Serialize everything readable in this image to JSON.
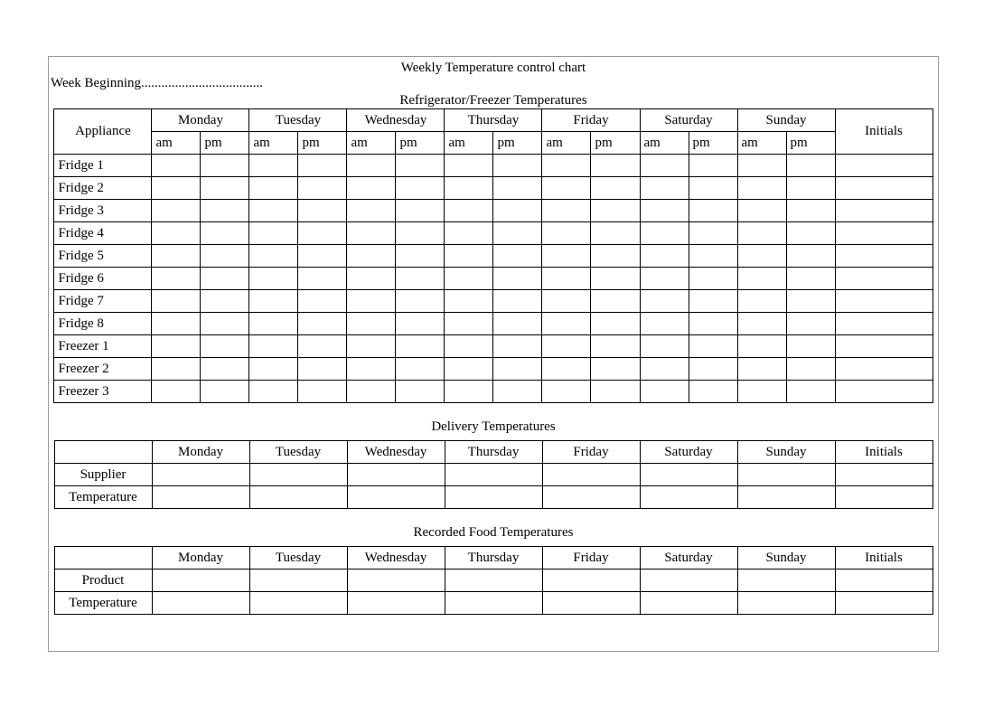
{
  "title": "Weekly Temperature control chart",
  "week_label": "Week Beginning....................................",
  "section1_title": "Refrigerator/Freezer Temperatures",
  "section2_title": "Delivery Temperatures",
  "section3_title": "Recorded Food Temperatures",
  "days": [
    "Monday",
    "Tuesday",
    "Wednesday",
    "Thursday",
    "Friday",
    "Saturday",
    "Sunday"
  ],
  "am": "am",
  "pm": "pm",
  "appliance_header": "Appliance",
  "initials_header": "Initials",
  "appliances": [
    "Fridge 1",
    "Fridge 2",
    "Fridge 3",
    "Fridge 4",
    "Fridge 5",
    "Fridge 6",
    "Fridge 7",
    "Fridge 8",
    "Freezer 1",
    "Freezer 2",
    "Freezer 3"
  ],
  "supplier_label": "Supplier",
  "temperature_label": "Temperature",
  "product_label": "Product",
  "appliance_values": {
    "Fridge 1": [
      "",
      "",
      "",
      "",
      "",
      "",
      "",
      "",
      "",
      "",
      "",
      "",
      "",
      ""
    ],
    "Fridge 2": [
      "",
      "",
      "",
      "",
      "",
      "",
      "",
      "",
      "",
      "",
      "",
      "",
      "",
      ""
    ],
    "Fridge 3": [
      "",
      "",
      "",
      "",
      "",
      "",
      "",
      "",
      "",
      "",
      "",
      "",
      "",
      ""
    ],
    "Fridge 4": [
      "",
      "",
      "",
      "",
      "",
      "",
      "",
      "",
      "",
      "",
      "",
      "",
      "",
      ""
    ],
    "Fridge 5": [
      "",
      "",
      "",
      "",
      "",
      "",
      "",
      "",
      "",
      "",
      "",
      "",
      "",
      ""
    ],
    "Fridge 6": [
      "",
      "",
      "",
      "",
      "",
      "",
      "",
      "",
      "",
      "",
      "",
      "",
      "",
      ""
    ],
    "Fridge 7": [
      "",
      "",
      "",
      "",
      "",
      "",
      "",
      "",
      "",
      "",
      "",
      "",
      "",
      ""
    ],
    "Fridge 8": [
      "",
      "",
      "",
      "",
      "",
      "",
      "",
      "",
      "",
      "",
      "",
      "",
      "",
      ""
    ],
    "Freezer 1": [
      "",
      "",
      "",
      "",
      "",
      "",
      "",
      "",
      "",
      "",
      "",
      "",
      "",
      ""
    ],
    "Freezer 2": [
      "",
      "",
      "",
      "",
      "",
      "",
      "",
      "",
      "",
      "",
      "",
      "",
      "",
      ""
    ],
    "Freezer 3": [
      "",
      "",
      "",
      "",
      "",
      "",
      "",
      "",
      "",
      "",
      "",
      "",
      "",
      ""
    ]
  },
  "appliance_initials": {
    "Fridge 1": "",
    "Fridge 2": "",
    "Fridge 3": "",
    "Fridge 4": "",
    "Fridge 5": "",
    "Fridge 6": "",
    "Fridge 7": "",
    "Fridge 8": "",
    "Freezer 1": "",
    "Freezer 2": "",
    "Freezer 3": ""
  },
  "delivery": {
    "supplier": [
      "",
      "",
      "",
      "",
      "",
      "",
      ""
    ],
    "temperature": [
      "",
      "",
      "",
      "",
      "",
      "",
      ""
    ],
    "initials": {
      "supplier": "",
      "temperature": ""
    }
  },
  "recorded": {
    "product": [
      "",
      "",
      "",
      "",
      "",
      "",
      ""
    ],
    "temperature": [
      "",
      "",
      "",
      "",
      "",
      "",
      ""
    ],
    "initials": {
      "product": "",
      "temperature": ""
    }
  },
  "style": {
    "font_family": "Times New Roman",
    "font_size_pt": 11,
    "border_color": "#000000",
    "outer_border_color": "#999999",
    "background": "#ffffff",
    "text_color": "#000000"
  }
}
